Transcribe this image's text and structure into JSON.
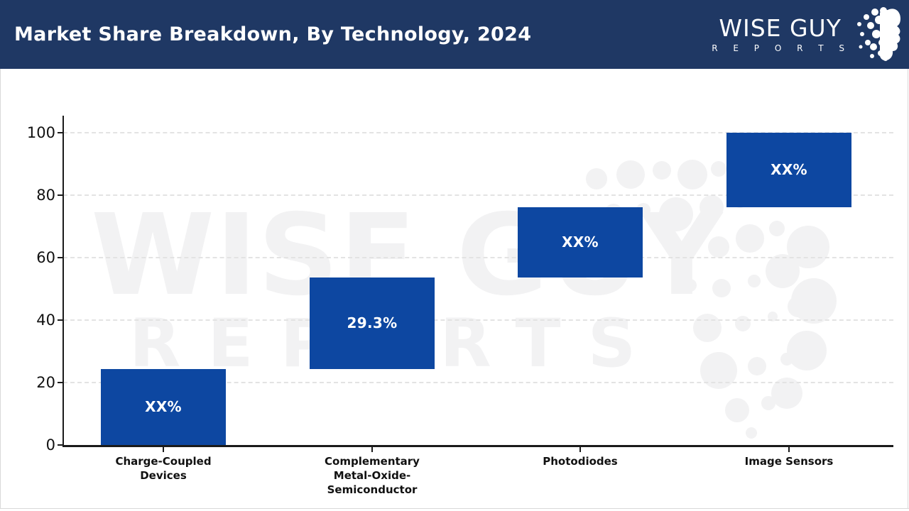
{
  "header": {
    "title": "Market Share Breakdown, By Technology, 2024",
    "logo": {
      "primary": "WISE GUY",
      "secondary": "R E P O R T S",
      "icon": "dotted-face-profile"
    }
  },
  "watermark": {
    "line1": "WISE GUY",
    "line2": "REPORTS"
  },
  "chart_data": {
    "type": "bar",
    "variant": "floating-segment-waterfall",
    "title": "Market Share Breakdown, By Technology, 2024",
    "categories": [
      "Charge-Coupled Devices",
      "Complementary Metal-Oxide-Semiconductor",
      "Photodiodes",
      "Image Sensors"
    ],
    "categories_display": [
      [
        "Charge-Coupled",
        "Devices"
      ],
      [
        "Complementary",
        "Metal-Oxide-",
        "Semiconductor"
      ],
      [
        "Photodiodes"
      ],
      [
        "Image Sensors"
      ]
    ],
    "segments": [
      {
        "category": "Charge-Coupled Devices",
        "start": 0,
        "end": 24.4,
        "label": "XX%"
      },
      {
        "category": "Complementary Metal-Oxide-Semiconductor",
        "start": 24.4,
        "end": 53.7,
        "label": "29.3%",
        "value": 29.3
      },
      {
        "category": "Photodiodes",
        "start": 53.7,
        "end": 76.2,
        "label": "XX%"
      },
      {
        "category": "Image Sensors",
        "start": 76.2,
        "end": 100,
        "label": "XX%"
      }
    ],
    "xlabel": "",
    "ylabel": "",
    "ylim": [
      0,
      105
    ],
    "yticks": [
      0,
      20,
      40,
      60,
      80,
      100
    ],
    "grid": "horizontal-dashed",
    "legend": "none",
    "bar_color": "#0d47a1",
    "bar_label_color": "#ffffff"
  },
  "colors": {
    "header_bg": "#1f3864",
    "bar": "#0d47a1",
    "axis": "#1a1a1a",
    "grid": "#e3e3e3",
    "watermark": "#f2f2f3",
    "border": "#d9d9d9"
  }
}
